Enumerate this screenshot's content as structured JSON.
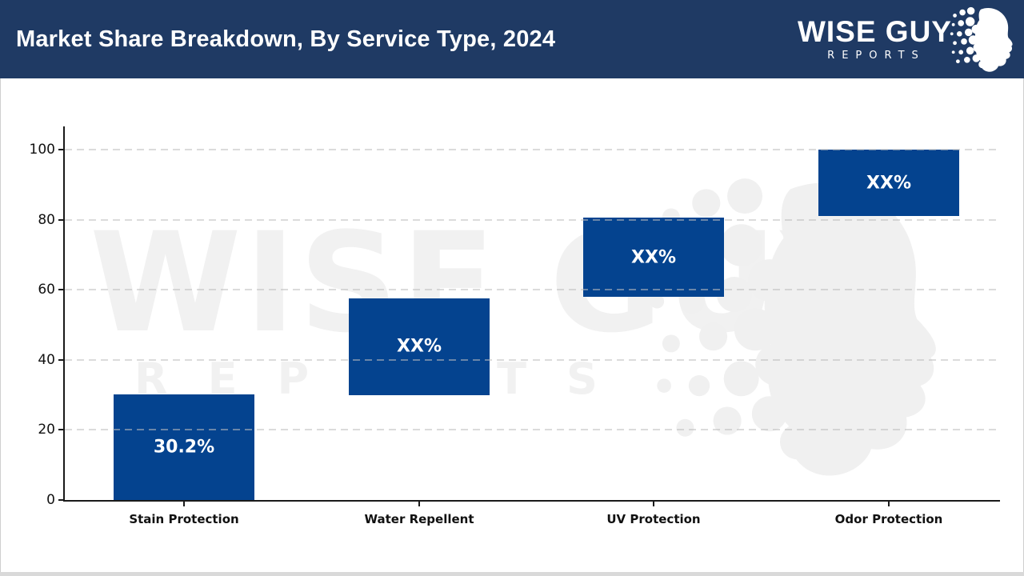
{
  "header": {
    "title": "Market Share Breakdown, By Service Type, 2024",
    "logo": {
      "name": "WISE GUY",
      "tagline": "REPORTS"
    }
  },
  "watermark": {
    "line1": "WISE GUY",
    "line2": "REPORTS"
  },
  "chart_data": {
    "type": "bar",
    "variant": "waterfall",
    "title": "Market Share Breakdown, By Service Type, 2024",
    "categories": [
      "Stain Protection",
      "Water Repellent",
      "UV Protection",
      "Odor Protection"
    ],
    "segments": [
      {
        "category": "Stain Protection",
        "start": 0,
        "end": 30.2,
        "label": "30.2%"
      },
      {
        "category": "Water Repellent",
        "start": 30,
        "end": 57.5,
        "label": "XX%"
      },
      {
        "category": "UV Protection",
        "start": 58,
        "end": 80.5,
        "label": "XX%"
      },
      {
        "category": "Odor Protection",
        "start": 81,
        "end": 100,
        "label": "XX%"
      }
    ],
    "xlabel": "",
    "ylabel": "",
    "ylim": [
      0,
      105
    ],
    "yticks": [
      0,
      20,
      40,
      60,
      80,
      100
    ],
    "grid": "horizontal-dashed-over-bars",
    "legend": "none",
    "bar_color": "#04438f",
    "bar_label_color": "#ffffff"
  },
  "colors": {
    "header_bg": "#1f3a64",
    "bar": "#04438f",
    "axis": "#1a1a1a",
    "watermark": "#f1f1f1",
    "bottom_strip": "#d9d9d9"
  }
}
